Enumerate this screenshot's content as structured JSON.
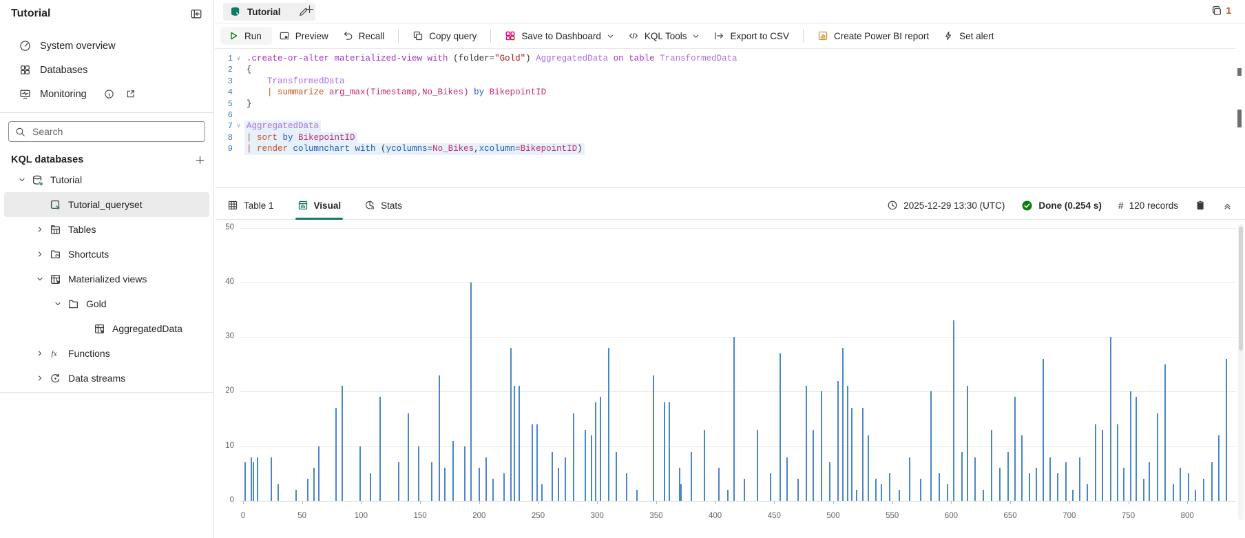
{
  "window": {
    "tab_badge_count": "1"
  },
  "colors": {
    "accent_teal": "#117865",
    "bar_blue": "#4a86c8",
    "status_green": "#107c10",
    "badge_orange": "#ca5010",
    "dashboard_magenta": "#e3008c",
    "powerbi_gold": "#e0a23f"
  },
  "sidebar": {
    "title": "Tutorial",
    "nav": [
      {
        "label": "System overview",
        "icon": "gauge-icon",
        "trailing": []
      },
      {
        "label": "Databases",
        "icon": "databases-grid-icon",
        "trailing": []
      },
      {
        "label": "Monitoring",
        "icon": "monitor-pulse-icon",
        "trailing": [
          "info-icon",
          "open-external-icon"
        ]
      }
    ],
    "search": {
      "placeholder": "Search"
    },
    "section": {
      "title": "KQL databases"
    },
    "tree": [
      {
        "label": "Tutorial",
        "level": 1,
        "chevron": "down",
        "icon": "database-icon",
        "selected": false
      },
      {
        "label": "Tutorial_queryset",
        "level": 2,
        "chevron": "none",
        "icon": "queryset-icon",
        "selected": true
      },
      {
        "label": "Tables",
        "level": 2,
        "chevron": "right",
        "icon": "tables-icon",
        "selected": false
      },
      {
        "label": "Shortcuts",
        "level": 2,
        "chevron": "right",
        "icon": "shortcuts-icon",
        "selected": false
      },
      {
        "label": "Materialized views",
        "level": 2,
        "chevron": "down",
        "icon": "materialized-view-icon",
        "selected": false
      },
      {
        "label": "Gold",
        "level": 3,
        "chevron": "down",
        "icon": "folder-icon",
        "selected": false
      },
      {
        "label": "AggregatedData",
        "level": 4,
        "chevron": "none",
        "icon": "materialized-view-icon",
        "selected": false
      },
      {
        "label": "Functions",
        "level": 2,
        "chevron": "right",
        "icon": "function-icon",
        "selected": false
      },
      {
        "label": "Data streams",
        "level": 2,
        "chevron": "right",
        "icon": "data-stream-icon",
        "selected": false
      }
    ]
  },
  "tabstrip": {
    "active_tab": "Tutorial"
  },
  "toolbar": [
    {
      "label": "Run",
      "icon": "run-play-icon",
      "style": "run",
      "chevron": false,
      "sep_after": false
    },
    {
      "label": "Preview",
      "icon": "preview-icon",
      "chevron": false,
      "sep_after": false
    },
    {
      "label": "Recall",
      "icon": "recall-icon",
      "chevron": false,
      "sep_after": true
    },
    {
      "label": "Copy query",
      "icon": "copy-icon",
      "chevron": false,
      "sep_after": true
    },
    {
      "label": "Save to Dashboard",
      "icon": "dashboard-icon",
      "chevron": true,
      "sep_after": false
    },
    {
      "label": "KQL Tools",
      "icon": "code-icon",
      "chevron": true,
      "sep_after": false
    },
    {
      "label": "Export to CSV",
      "icon": "export-icon",
      "chevron": false,
      "sep_after": true
    },
    {
      "label": "Create Power BI report",
      "icon": "powerbi-icon",
      "chevron": false,
      "sep_after": false
    },
    {
      "label": "Set alert",
      "icon": "alert-icon",
      "chevron": false,
      "sep_after": false
    }
  ],
  "editor": {
    "lines": [
      {
        "num": 1,
        "fold": true,
        "hl": false,
        "tokens": [
          [
            "kw",
            ".create-or-alter materialized-view with "
          ],
          [
            "pl",
            "(folder="
          ],
          [
            "str",
            "\"Gold\""
          ],
          [
            "pl",
            ") "
          ],
          [
            "name",
            "AggregatedData"
          ],
          [
            "kw",
            " on table "
          ],
          [
            "name",
            "TransformedData"
          ]
        ]
      },
      {
        "num": 2,
        "fold": false,
        "hl": false,
        "tokens": [
          [
            "pl",
            "{"
          ]
        ]
      },
      {
        "num": 3,
        "fold": false,
        "hl": false,
        "tokens": [
          [
            "pl",
            "    "
          ],
          [
            "name",
            "TransformedData"
          ]
        ]
      },
      {
        "num": 4,
        "fold": false,
        "hl": false,
        "tokens": [
          [
            "pl",
            "    "
          ],
          [
            "op",
            "| summarize "
          ],
          [
            "fn",
            "arg_max(Timestamp,No_Bikes)"
          ],
          [
            "pl",
            " "
          ],
          [
            "blue",
            "by "
          ],
          [
            "fn",
            "BikepointID"
          ]
        ]
      },
      {
        "num": 5,
        "fold": false,
        "hl": false,
        "tokens": [
          [
            "pl",
            "}"
          ]
        ]
      },
      {
        "num": 6,
        "fold": false,
        "hl": false,
        "tokens": []
      },
      {
        "num": 7,
        "fold": true,
        "hl": true,
        "tokens": [
          [
            "name",
            "AggregatedData"
          ]
        ]
      },
      {
        "num": 8,
        "fold": false,
        "hl": true,
        "tokens": [
          [
            "op",
            "| sort "
          ],
          [
            "blue",
            "by "
          ],
          [
            "fn",
            "BikepointID"
          ]
        ]
      },
      {
        "num": 9,
        "fold": false,
        "hl": true,
        "tokens": [
          [
            "op",
            "| render "
          ],
          [
            "blue",
            "columnchart with "
          ],
          [
            "pl",
            "("
          ],
          [
            "blue",
            "ycolumns"
          ],
          [
            "pl",
            "="
          ],
          [
            "fn",
            "No_Bikes"
          ],
          [
            "pl",
            ","
          ],
          [
            "blue",
            "xcolumn"
          ],
          [
            "pl",
            "="
          ],
          [
            "fn",
            "BikepointID"
          ],
          [
            "pl",
            ")"
          ]
        ]
      }
    ]
  },
  "results": {
    "tabs": [
      {
        "label": "Table 1",
        "icon": "table-grid-icon",
        "active": false
      },
      {
        "label": "Visual",
        "icon": "visual-chart-icon",
        "active": true
      },
      {
        "label": "Stats",
        "icon": "stats-pie-icon",
        "active": false
      }
    ],
    "timestamp": "2025-12-29 13:30 (UTC)",
    "status": "Done (0.254 s)",
    "records": "120 records"
  },
  "chart_data": {
    "type": "bar",
    "title": "",
    "xlabel": "",
    "ylabel": "",
    "x_ticks": [
      0,
      50,
      100,
      150,
      200,
      250,
      300,
      350,
      400,
      450,
      500,
      550,
      600,
      650,
      700,
      750,
      800
    ],
    "y_ticks": [
      0,
      10,
      20,
      30,
      40,
      50
    ],
    "ylim": [
      0,
      50
    ],
    "xlim": [
      0,
      845
    ],
    "grid": true,
    "legend": false,
    "bar_color": "#4a86c8",
    "points": [
      [
        2,
        7
      ],
      [
        7,
        8
      ],
      [
        9,
        7
      ],
      [
        12,
        8
      ],
      [
        24,
        8
      ],
      [
        30,
        3
      ],
      [
        45,
        2
      ],
      [
        55,
        4
      ],
      [
        60,
        6
      ],
      [
        64,
        10
      ],
      [
        79,
        17
      ],
      [
        84,
        21
      ],
      [
        99,
        10
      ],
      [
        108,
        5
      ],
      [
        116,
        19
      ],
      [
        132,
        7
      ],
      [
        140,
        16
      ],
      [
        149,
        10
      ],
      [
        160,
        7
      ],
      [
        166,
        23
      ],
      [
        171,
        6
      ],
      [
        178,
        11
      ],
      [
        188,
        10
      ],
      [
        193,
        40
      ],
      [
        200,
        6
      ],
      [
        206,
        8
      ],
      [
        212,
        4
      ],
      [
        221,
        5
      ],
      [
        227,
        28
      ],
      [
        230,
        21
      ],
      [
        234,
        21
      ],
      [
        245,
        14
      ],
      [
        249,
        14
      ],
      [
        253,
        3
      ],
      [
        262,
        9
      ],
      [
        267,
        6
      ],
      [
        273,
        8
      ],
      [
        280,
        16
      ],
      [
        290,
        13
      ],
      [
        295,
        12
      ],
      [
        299,
        18
      ],
      [
        303,
        19
      ],
      [
        310,
        28
      ],
      [
        316,
        9
      ],
      [
        325,
        5
      ],
      [
        334,
        2
      ],
      [
        348,
        23
      ],
      [
        357,
        18
      ],
      [
        361,
        18
      ],
      [
        370,
        6
      ],
      [
        371,
        3
      ],
      [
        380,
        9
      ],
      [
        391,
        13
      ],
      [
        403,
        6
      ],
      [
        411,
        2
      ],
      [
        416,
        30
      ],
      [
        425,
        4
      ],
      [
        436,
        13
      ],
      [
        447,
        5
      ],
      [
        455,
        27
      ],
      [
        461,
        8
      ],
      [
        470,
        4
      ],
      [
        477,
        21
      ],
      [
        483,
        13
      ],
      [
        490,
        20
      ],
      [
        497,
        7
      ],
      [
        504,
        22
      ],
      [
        508,
        28
      ],
      [
        512,
        21
      ],
      [
        516,
        17
      ],
      [
        520,
        2
      ],
      [
        525,
        17
      ],
      [
        530,
        12
      ],
      [
        536,
        4
      ],
      [
        541,
        3
      ],
      [
        548,
        5
      ],
      [
        556,
        2
      ],
      [
        565,
        8
      ],
      [
        574,
        4
      ],
      [
        583,
        20
      ],
      [
        590,
        5
      ],
      [
        597,
        3
      ],
      [
        602,
        33
      ],
      [
        609,
        9
      ],
      [
        614,
        21
      ],
      [
        620,
        8
      ],
      [
        627,
        2
      ],
      [
        634,
        13
      ],
      [
        641,
        6
      ],
      [
        648,
        9
      ],
      [
        654,
        19
      ],
      [
        660,
        12
      ],
      [
        666,
        5
      ],
      [
        672,
        6
      ],
      [
        678,
        26
      ],
      [
        684,
        8
      ],
      [
        690,
        5
      ],
      [
        697,
        7
      ],
      [
        703,
        2
      ],
      [
        709,
        8
      ],
      [
        715,
        3
      ],
      [
        722,
        14
      ],
      [
        728,
        13
      ],
      [
        735,
        30
      ],
      [
        741,
        14
      ],
      [
        746,
        6
      ],
      [
        752,
        20
      ],
      [
        757,
        19
      ],
      [
        763,
        4
      ],
      [
        768,
        7
      ],
      [
        775,
        16
      ],
      [
        781,
        25
      ],
      [
        788,
        3
      ],
      [
        794,
        6
      ],
      [
        801,
        5
      ],
      [
        807,
        2
      ],
      [
        814,
        4
      ],
      [
        821,
        7
      ],
      [
        827,
        12
      ],
      [
        833,
        26
      ]
    ]
  }
}
